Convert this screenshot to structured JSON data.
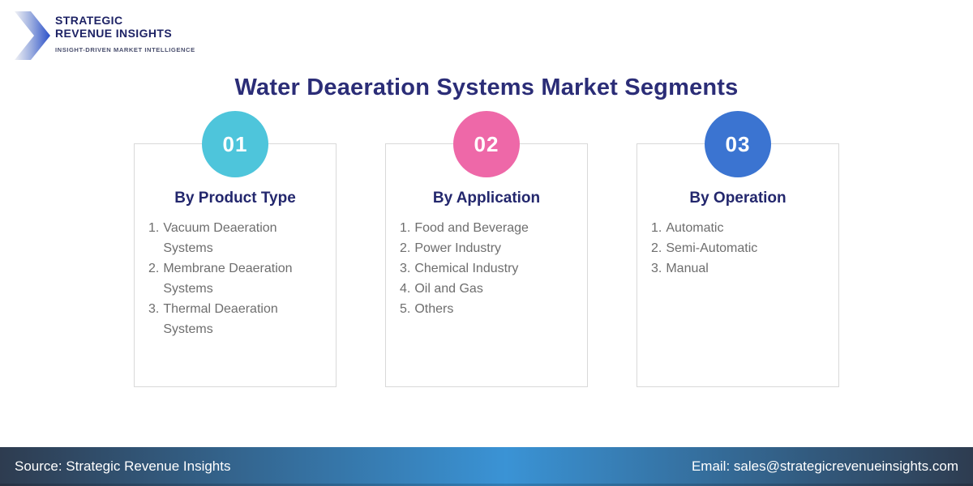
{
  "logo": {
    "brand_line1": "STRATEGIC",
    "brand_line2": "REVENUE INSIGHTS",
    "tagline": "INSIGHT-DRIVEN MARKET INTELLIGENCE",
    "mark_gradient_start": "#f0f1f5",
    "mark_gradient_end": "#2b50c9"
  },
  "title": "Water Deaeration Systems Market Segments",
  "cards": [
    {
      "number": "01",
      "color": "#4ec5db",
      "heading": "By Product Type",
      "items": [
        "Vacuum Deaeration Systems",
        "Membrane Deaeration Systems",
        "Thermal Deaeration Systems"
      ]
    },
    {
      "number": "02",
      "color": "#ee68a8",
      "heading": "By Application",
      "items": [
        "Food and Beverage",
        "Power Industry",
        "Chemical Industry",
        "Oil and Gas",
        "Others"
      ]
    },
    {
      "number": "03",
      "color": "#3b74d1",
      "heading": "By Operation",
      "items": [
        "Automatic",
        "Semi-Automatic",
        "Manual"
      ]
    }
  ],
  "footer": {
    "source": "Source: Strategic Revenue Insights",
    "email": "Email: sales@strategicrevenueinsights.com"
  },
  "colors": {
    "title_text": "#2b2d77",
    "heading_text": "#23276d",
    "list_text": "#6e6e6e",
    "footer_edge": "#2e3c50",
    "footer_center": "#3a93d5"
  }
}
